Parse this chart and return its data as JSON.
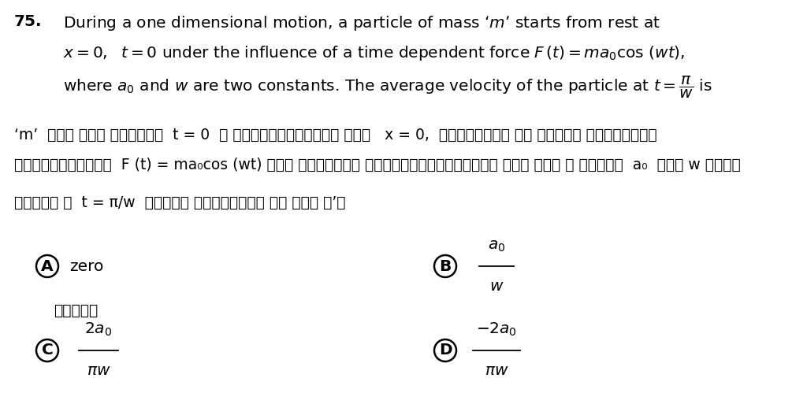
{
  "background_color": "#ffffff",
  "fig_width": 10.24,
  "fig_height": 5.13,
  "dpi": 100,
  "q_num": "75.",
  "en1": "During a one dimensional motion, a particle of mass ‘$m$’ starts from rest at",
  "en2": "$x = 0,\\ \\ t = 0$ under the influence of a time dependent force $F\\,(t) = ma_0\\cos\\,(wt),$",
  "en3": "where $a_0$ and $w$ are two constants. The average velocity of the particle at $t = \\dfrac{\\pi}{w}$ is",
  "as1a": "‘m’  ভৰৰ এটা কণিকাই  ",
  "as1b": "t = 0",
  "as1c": "  ত ষ্থিতাৰষ্থাৰ পৰা   ",
  "as1d": "x = 0,",
  "as1e": "  অৰষ্থানত এক সময়ৰ সাপেক্ষে",
  "as2a": "পৰিৱৰ্তনশীল  ",
  "as2b": "F (t) = ma₀cos (wt)",
  "as2c": " ৱলৰ প্ৰভাৰত একমাৰ্ত্ৰিকভাৰে গতি কৰে । ইয়াত  ",
  "as2d": "a₀",
  "as2e": "  আৰু ",
  "as2f": "w",
  "as2g": " দুটা",
  "as3a": "ৰ্সৰক ।  ",
  "as3b": "t = π/w",
  "as3c": "  সময়ত কণিকাটোৰ গড় ৱেগ হ’ৱ",
  "optA_label": "A",
  "optA_text": "zero",
  "optA_as": "শূন্য",
  "optB_label": "B",
  "optB_frac_num": "$a_0$",
  "optB_frac_den": "$w$",
  "optC_label": "C",
  "optC_frac_num": "$2a_0$",
  "optC_frac_den": "$\\pi w$",
  "optD_label": "D",
  "optD_frac_num": "$-2a_0$",
  "optD_frac_den": "$\\pi w$"
}
